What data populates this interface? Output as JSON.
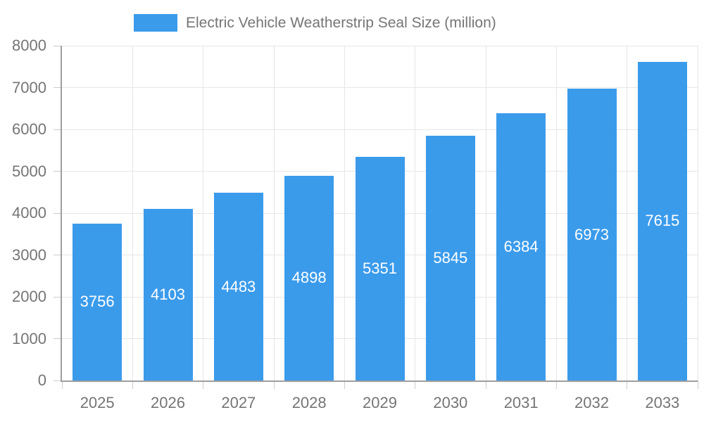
{
  "chart_data": {
    "type": "bar",
    "title": "Electric Vehicle Weatherstrip Seal Size (million)",
    "categories": [
      "2025",
      "2026",
      "2027",
      "2028",
      "2029",
      "2030",
      "2031",
      "2032",
      "2033"
    ],
    "values": [
      3756,
      4103,
      4483,
      4898,
      5351,
      5845,
      6384,
      6973,
      7615
    ],
    "series": [
      {
        "name": "Electric Vehicle Weatherstrip Seal Size (million)",
        "values": [
          3756,
          4103,
          4483,
          4898,
          5351,
          5845,
          6384,
          6973,
          7615
        ]
      }
    ],
    "xlabel": "",
    "ylabel": "",
    "ylim": [
      0,
      8000
    ],
    "yticks": [
      0,
      1000,
      2000,
      3000,
      4000,
      5000,
      6000,
      7000,
      8000
    ],
    "grid": true,
    "legend_position": "top",
    "data_labels": "inside-center-white",
    "colors": {
      "bar": "#3b9beb",
      "bar_label": "#ffffff",
      "axis_label": "#757575",
      "legend_text": "#757575",
      "grid_line": "#e6e6e6",
      "axis_line": "#9e9e9e",
      "tick": "#cccccc",
      "background": "#ffffff"
    }
  }
}
